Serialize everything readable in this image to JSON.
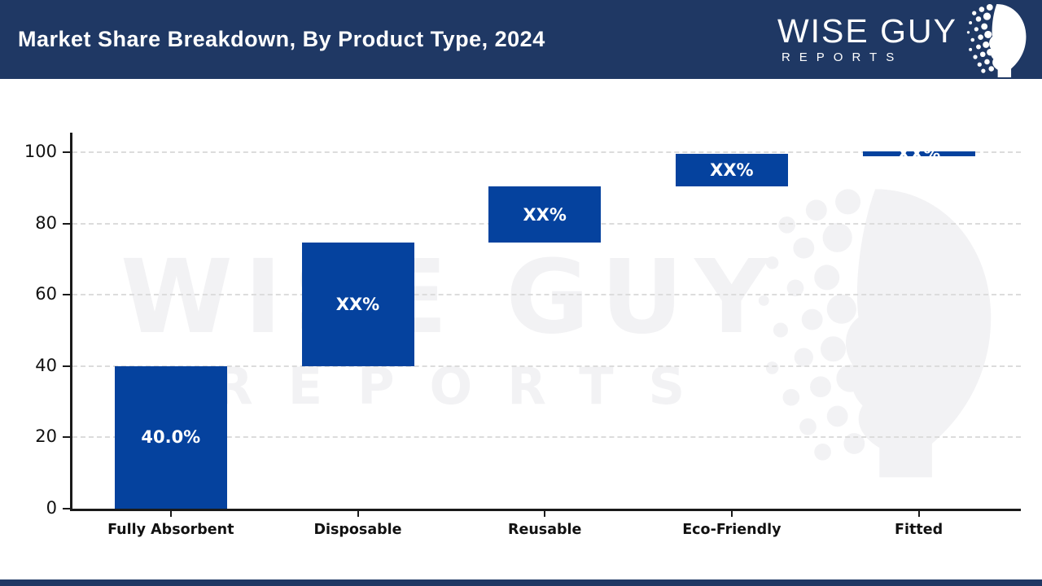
{
  "header": {
    "title": "Market Share Breakdown, By Product Type, 2024",
    "logo": {
      "wordmark": "WISE GUY",
      "subtitle": "REPORTS"
    }
  },
  "watermark": {
    "wordmark": "WISE GUY",
    "subtitle": "REPORTS"
  },
  "chart_data": {
    "type": "bar",
    "subtype": "waterfall",
    "title": "Market Share Breakdown, By Product Type, 2024",
    "categories": [
      "Fully Absorbent",
      "Disposable",
      "Reusable",
      "Eco-Friendly",
      "Fitted"
    ],
    "segments": [
      {
        "category": "Fully Absorbent",
        "start": 0,
        "end": 40,
        "label": "40.0%"
      },
      {
        "category": "Disposable",
        "start": 40,
        "end": 74.8,
        "label": "XX%"
      },
      {
        "category": "Reusable",
        "start": 74.8,
        "end": 90.4,
        "label": "XX%"
      },
      {
        "category": "Eco-Friendly",
        "start": 90.4,
        "end": 99.7,
        "label": "XX%"
      },
      {
        "category": "Fitted",
        "start": 99.0,
        "end": 100.4,
        "label": "XX%"
      }
    ],
    "yticks": [
      0,
      20,
      40,
      60,
      80,
      100
    ],
    "ylim": [
      0,
      105
    ],
    "xlabel": "",
    "ylabel": "",
    "grid": "horizontal-dashed",
    "legend": "none",
    "bar_color": "#05429e",
    "bar_label_color": "#ffffff",
    "axis_color": "#1a1a1a",
    "gridline_color": "#dcdcdc"
  },
  "colors": {
    "header_bg": "#1f3864",
    "footer_bg": "#1f3864",
    "page_bg": "#ffffff",
    "watermark": "#f2f2f4"
  }
}
